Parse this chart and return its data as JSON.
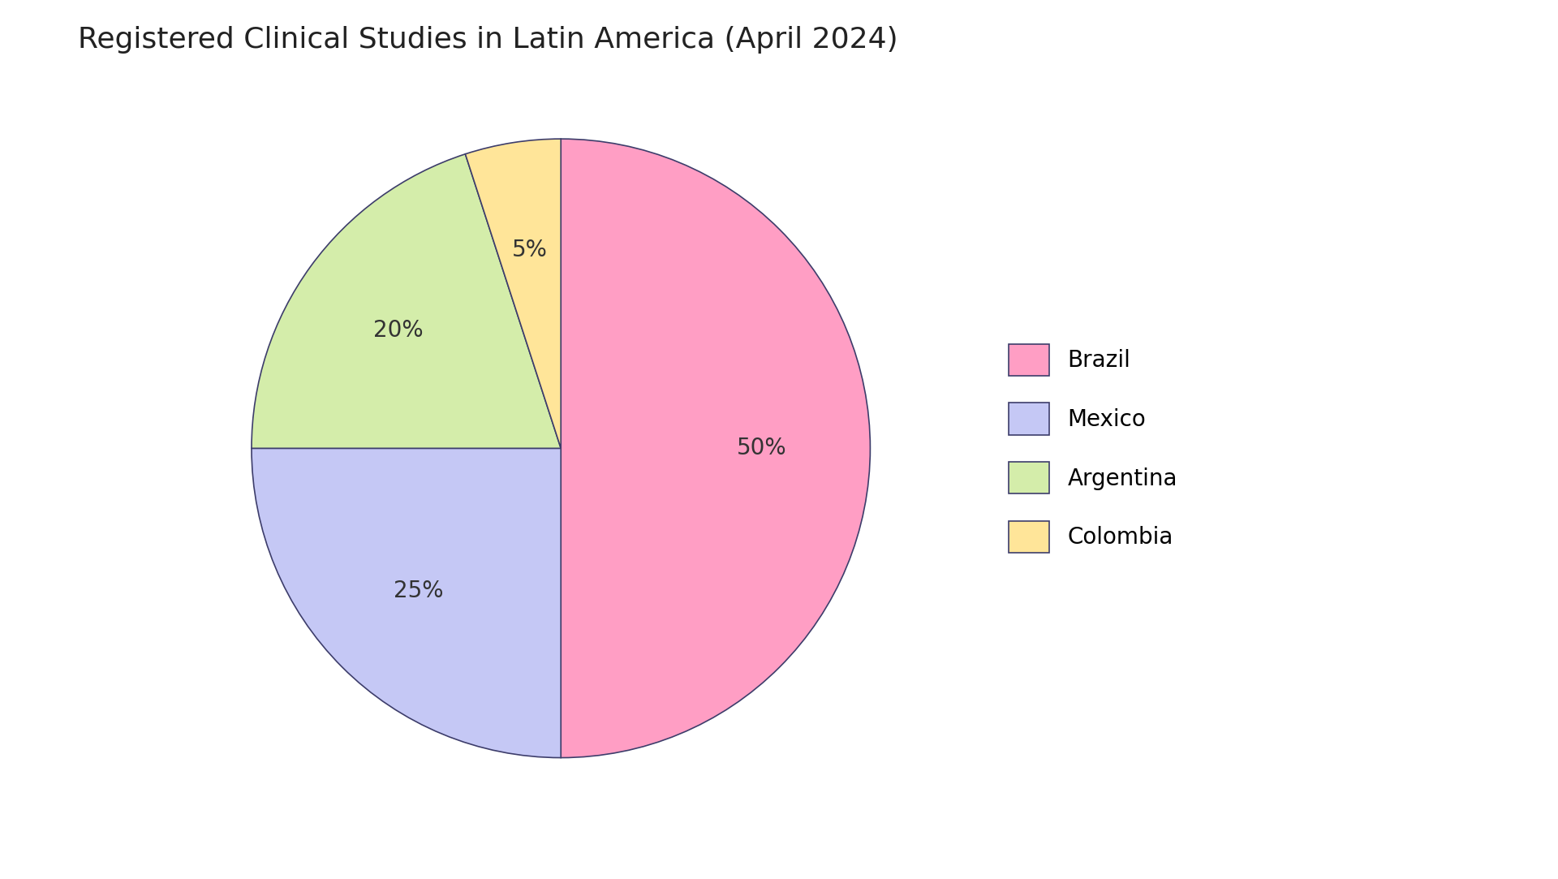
{
  "title": "Registered Clinical Studies in Latin America (April 2024)",
  "title_fontsize": 26,
  "title_fontfamily": "sans-serif",
  "labels": [
    "Brazil",
    "Mexico",
    "Argentina",
    "Colombia"
  ],
  "sizes": [
    50,
    25,
    20,
    5
  ],
  "colors": [
    "#FF9EC4",
    "#C5C8F5",
    "#D4EDAA",
    "#FFE599"
  ],
  "edge_color": "#3d3d6b",
  "edge_linewidth": 1.2,
  "autopct_fontsize": 20,
  "autopct_color": "#333333",
  "legend_fontsize": 20,
  "startangle": 90,
  "background_color": "#ffffff",
  "text_color": "#222222",
  "pctdistance": 0.65
}
